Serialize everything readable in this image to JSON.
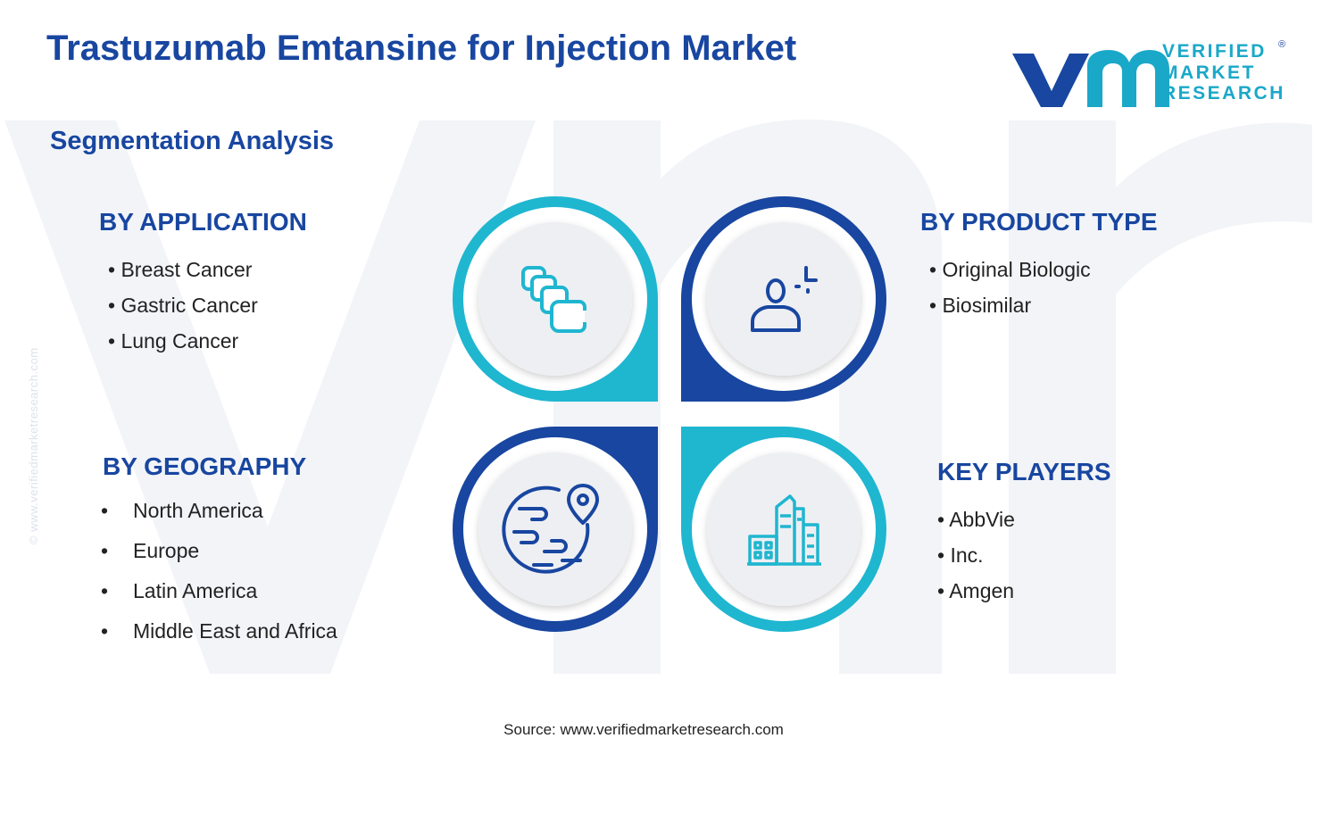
{
  "header": {
    "title": "Trastuzumab Emtansine for Injection Market",
    "subtitle": "Segmentation Analysis"
  },
  "logo": {
    "line1": "VERIFIED",
    "line2": "MARKET",
    "line3": "RESEARCH",
    "registered": "®",
    "mark": "vmr-logo-icon"
  },
  "side_url": "© www.verifiedmarketresearch.com",
  "segments": {
    "application": {
      "heading": "BY APPLICATION",
      "items": [
        "Breast Cancer",
        "Gastric Cancer",
        "Lung Cancer"
      ],
      "icon": "stacked-layers-icon"
    },
    "product_type": {
      "heading": "BY PRODUCT TYPE",
      "items": [
        "Original Biologic",
        "Biosimilar"
      ],
      "icon": "user-plus-icon"
    },
    "geography": {
      "heading": "BY GEOGRAPHY",
      "items": [
        "North America",
        "Europe",
        "Latin America",
        "Middle East and Africa"
      ],
      "icon": "globe-location-icon"
    },
    "key_players": {
      "heading": "KEY PLAYERS",
      "items": [
        "AbbVie",
        "Inc.",
        "Amgen"
      ],
      "icon": "city-buildings-icon"
    }
  },
  "footer": {
    "source": "Source: www.verifiedmarketresearch.com"
  },
  "colors": {
    "navy": "#1846a0",
    "cyan": "#1fb6d0",
    "circle_fill": "#eeeff3",
    "watermark": "#f2f4f8"
  }
}
